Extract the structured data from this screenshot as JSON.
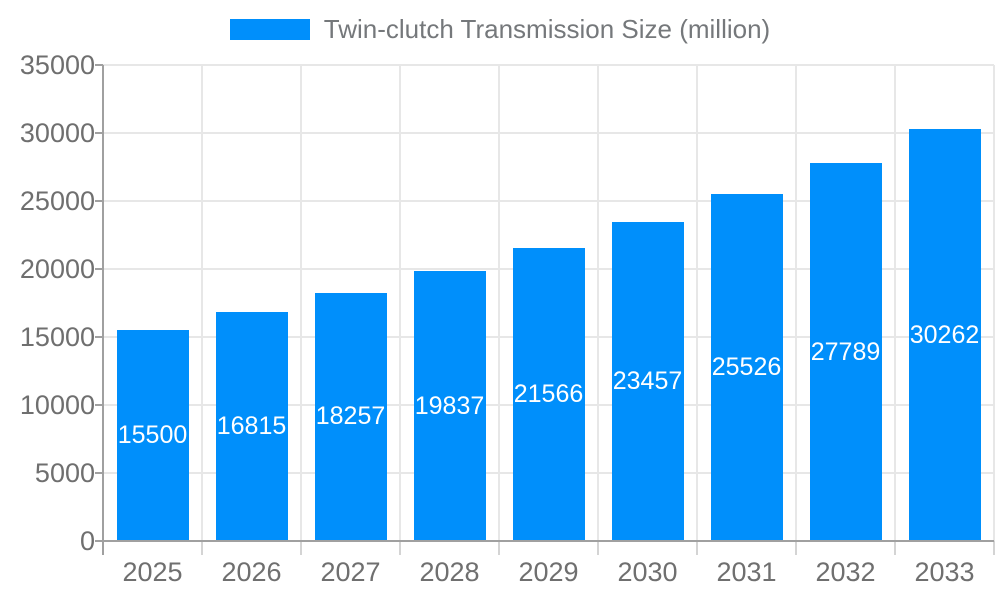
{
  "legend": {
    "label": "Twin-clutch Transmission Size (million)"
  },
  "colors": {
    "bar": "#008FFB",
    "bar_label": "#FFFFFF",
    "axis_text": "#6F6F6F",
    "legend_text": "#75787B",
    "grid": "#E7E7E7",
    "axis_line": "#A0A0A0",
    "outer_tick": "#D4D4D4",
    "background": "#FFFFFF"
  },
  "chart_data": {
    "type": "bar",
    "categories": [
      "2025",
      "2026",
      "2027",
      "2028",
      "2029",
      "2030",
      "2031",
      "2032",
      "2033"
    ],
    "series": [
      {
        "name": "Twin-clutch Transmission Size (million)",
        "values": [
          15500,
          16815,
          18257,
          19837,
          21566,
          23457,
          25526,
          27789,
          30262
        ]
      }
    ],
    "title": "",
    "xlabel": "",
    "ylabel": "",
    "ylim": [
      0,
      35000
    ],
    "ytick_step": 5000,
    "ytick_labels": [
      "0",
      "5000",
      "10000",
      "15000",
      "20000",
      "25000",
      "30000",
      "35000"
    ],
    "grid": true,
    "legend_position": "top",
    "value_labels": "inside-center"
  }
}
